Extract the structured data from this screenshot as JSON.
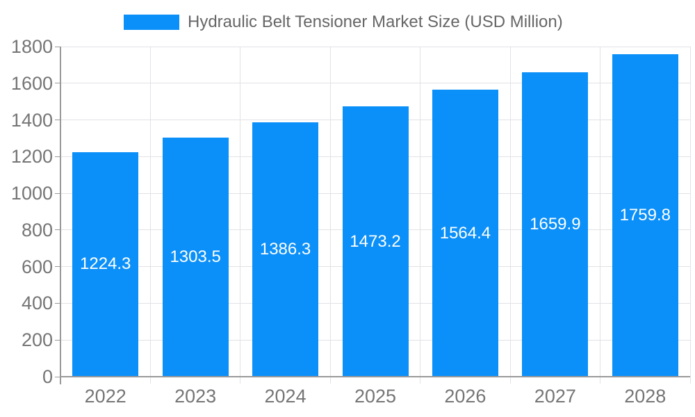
{
  "chart_data": {
    "type": "bar",
    "title": "Hydraulic Belt Tensioner Market Size (USD Million)",
    "categories": [
      "2022",
      "2023",
      "2024",
      "2025",
      "2026",
      "2027",
      "2028"
    ],
    "values": [
      1224.3,
      1303.5,
      1386.3,
      1473.2,
      1564.4,
      1659.9,
      1759.8
    ],
    "xlabel": "",
    "ylabel": "",
    "ylim": [
      0,
      1800
    ],
    "yticks": [
      0,
      200,
      400,
      600,
      800,
      1000,
      1200,
      1400,
      1600,
      1800
    ],
    "grid": "on",
    "legend_position": "top",
    "colors": {
      "bar": "#0b90f9",
      "grid": "#e2e2e6",
      "axis": "#999999",
      "tick_text": "#757575",
      "legend_text": "#666666",
      "value_label": "#ffffff"
    }
  },
  "legend": {
    "label": "Hydraulic Belt Tensioner Market Size (USD Million)"
  }
}
